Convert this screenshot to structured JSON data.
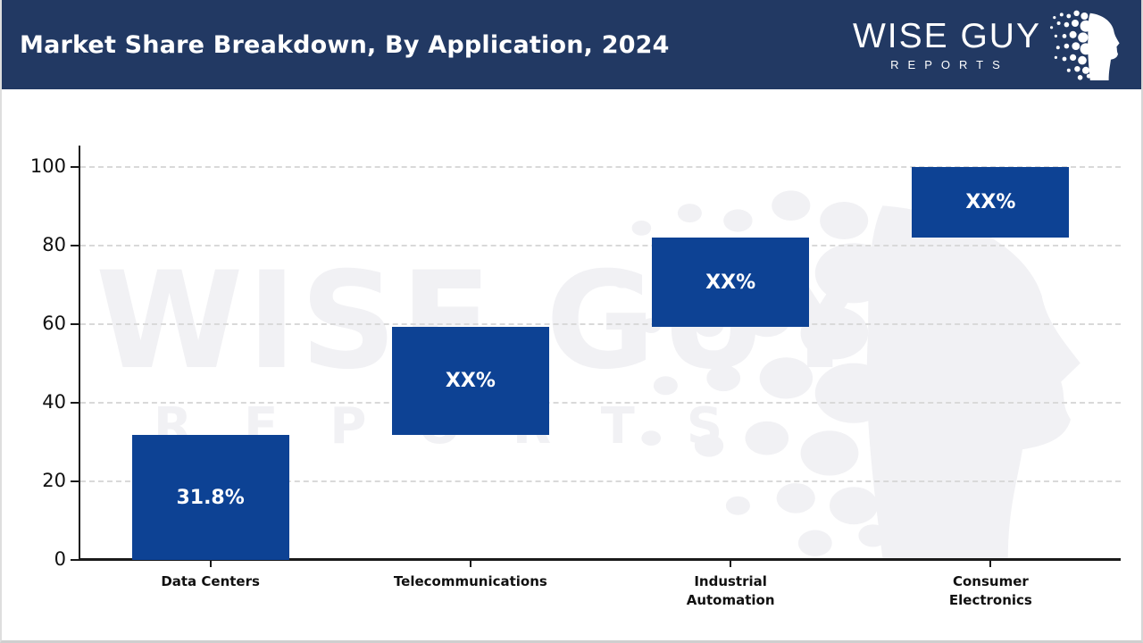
{
  "header": {
    "title": "Market Share Breakdown, By Application, 2024",
    "logo": {
      "line1": "WISE GUY",
      "line2": "REPORTS"
    }
  },
  "watermark": {
    "line1": "WISE GUY",
    "line2": "REPORTS"
  },
  "colors": {
    "header_bg": "#223963",
    "bar": "#0d4294",
    "bar_label": "#ffffff",
    "watermark": "#f1f1f4",
    "grid": "#d9d9d9",
    "axis": "#1a1a1a"
  },
  "chart_data": {
    "type": "bar",
    "subtype": "waterfall",
    "title": "Market Share Breakdown, By Application, 2024",
    "categories": [
      "Data Centers",
      "Telecommunications",
      "Industrial Automation",
      "Consumer Electronics"
    ],
    "category_label_lines": [
      [
        "Data Centers"
      ],
      [
        "Telecommunications"
      ],
      [
        "Industrial",
        "Automation"
      ],
      [
        "Consumer",
        "Electronics"
      ]
    ],
    "series": [
      {
        "name": "Market Share",
        "segments": [
          {
            "category": "Data Centers",
            "start": 0,
            "end": 31.8,
            "label": "31.8%"
          },
          {
            "category": "Telecommunications",
            "start": 31.8,
            "end": 59.3,
            "label": "XX%"
          },
          {
            "category": "Industrial Automation",
            "start": 59.3,
            "end": 82.0,
            "label": "XX%"
          },
          {
            "category": "Consumer Electronics",
            "start": 82.0,
            "end": 100,
            "label": "XX%"
          }
        ]
      }
    ],
    "ylim": [
      0,
      105.5
    ],
    "yticks": [
      0,
      20,
      40,
      60,
      80,
      100
    ],
    "xlabel": "",
    "ylabel": "",
    "grid": "horizontal-dashed",
    "legend": "none"
  }
}
